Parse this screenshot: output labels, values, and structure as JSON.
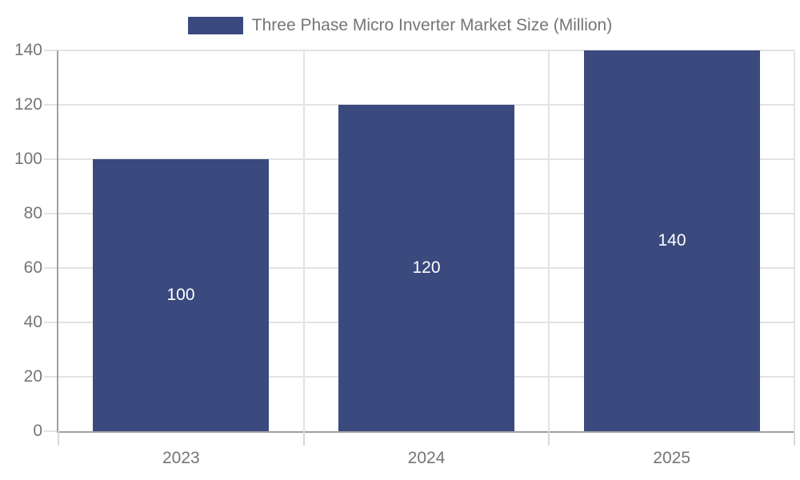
{
  "legend": {
    "label": "Three Phase Micro Inverter Market Size (Million)",
    "swatch_color": "#3A4A7E"
  },
  "chart_data": {
    "type": "bar",
    "title": "Three Phase Micro Inverter Market Size (Million)",
    "categories": [
      "2023",
      "2024",
      "2025"
    ],
    "series": [
      {
        "name": "Three Phase Micro Inverter Market Size (Million)",
        "values": [
          100,
          120,
          140
        ]
      }
    ],
    "bar_value_labels": [
      "100",
      "120",
      "140"
    ],
    "ylim": [
      0,
      140
    ],
    "yticks": [
      0,
      20,
      40,
      60,
      80,
      100,
      120,
      140
    ],
    "xlabel": "",
    "ylabel": "",
    "grid": true,
    "legend_position": "top-center",
    "colors": {
      "bar": "#3A4A7E",
      "bar_label": "#FFFFFF",
      "grid_line": "#E3E3E3",
      "x_tick_line": "#D8D8D8",
      "axis_line": "#A0A0A0",
      "tick_text": "#757575",
      "background": "#FFFFFF"
    }
  }
}
